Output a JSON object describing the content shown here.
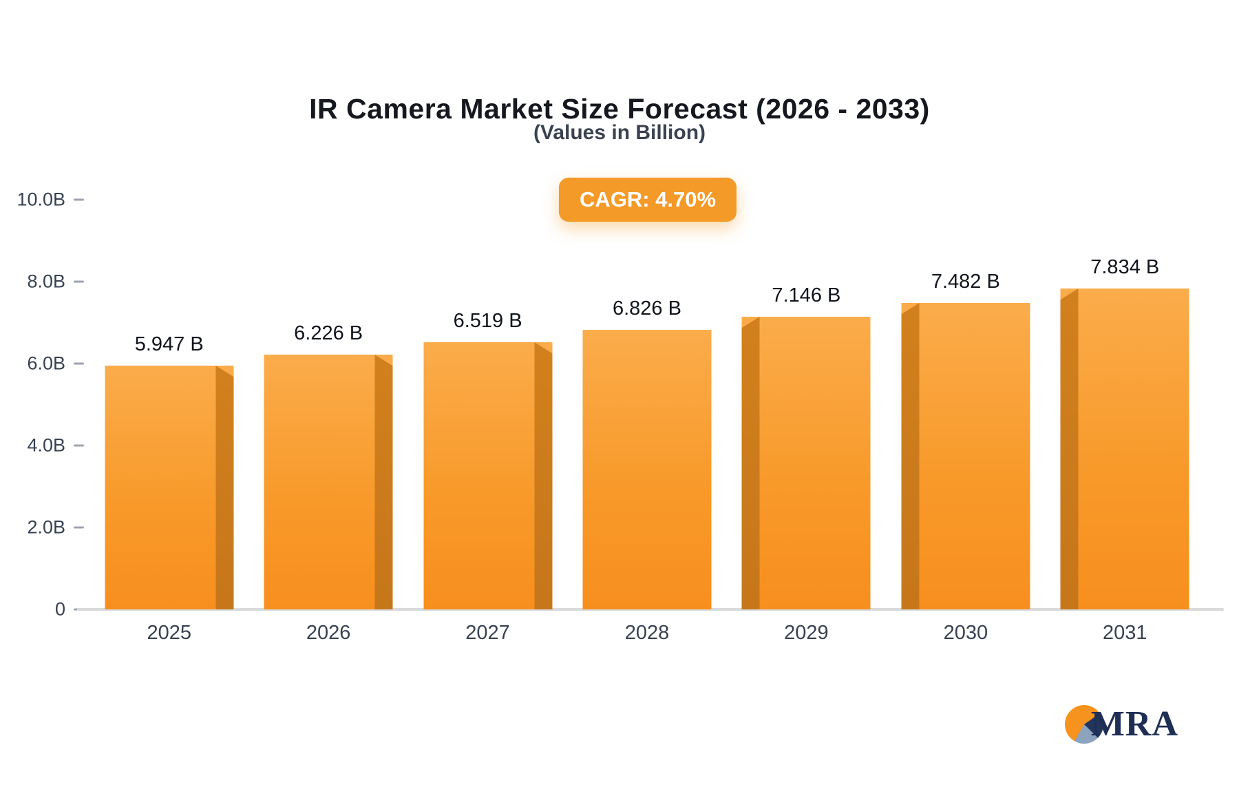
{
  "header": {
    "title": "IR Camera Market Size Forecast (2026 - 2033)",
    "subtitle": "(Values in Billion)"
  },
  "badge": {
    "label": "CAGR: 4.70%"
  },
  "logo": {
    "text": "MRA"
  },
  "colors": {
    "bar_top": "#FBAC4B",
    "bar_bottom": "#F78F1E",
    "bar_side": "#C4751A",
    "badge_bg": "#F49A28",
    "title_text": "#15181E",
    "axis_text": "#374151",
    "logo_navy": "#1E2E55",
    "logo_orange": "#F6921E"
  },
  "chart_data": {
    "type": "bar",
    "title": "IR Camera Market Size Forecast (2026 - 2033)",
    "subtitle": "(Values in Billion)",
    "annotation": "CAGR: 4.70%",
    "categories": [
      "2025",
      "2026",
      "2027",
      "2028",
      "2029",
      "2030",
      "2031"
    ],
    "values": [
      5.947,
      6.226,
      6.519,
      6.826,
      7.146,
      7.482,
      7.834
    ],
    "value_labels": [
      "5.947 B",
      "6.226 B",
      "6.519 B",
      "6.826 B",
      "7.146 B",
      "7.482 B",
      "7.834 B"
    ],
    "xlabel": "",
    "ylabel": "",
    "ylim": [
      0,
      10
    ],
    "yticks": [
      0,
      2,
      4,
      6,
      8,
      10
    ],
    "ytick_labels": [
      "0",
      "2.0B",
      "4.0B",
      "6.0B",
      "8.0B",
      "10.0B"
    ],
    "grid": false,
    "legend": false,
    "bar_color": "#F78F1E"
  }
}
